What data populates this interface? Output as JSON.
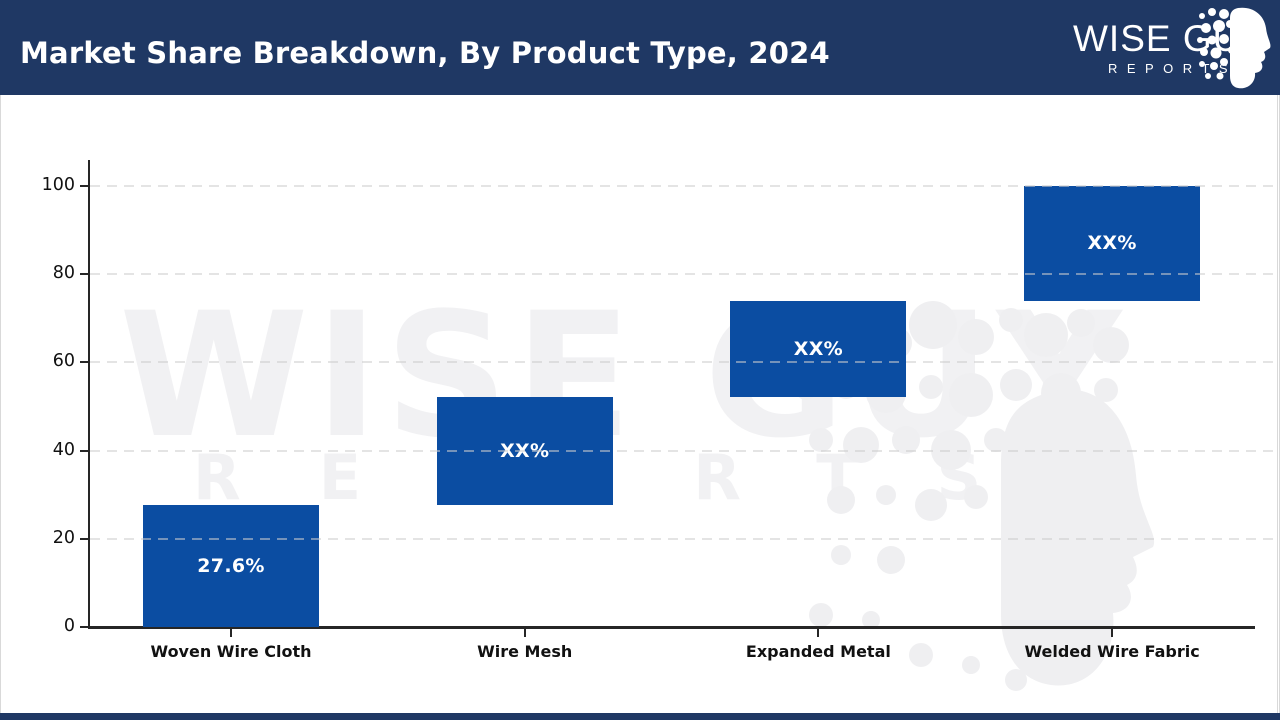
{
  "header": {
    "title": "Market Share Breakdown, By Product Type, 2024",
    "logo": {
      "line1": "WISE GUY",
      "line2": "REPORTS"
    }
  },
  "watermark": {
    "line1": "WISE GUY",
    "line2": "REPORTS"
  },
  "colors": {
    "header_bg": "#1F3864",
    "footer_bg": "#1F3864",
    "bar": "#0B4DA2",
    "grid": "#D9D9D9",
    "axis": "#262626",
    "bar_label": "#FFFFFF",
    "watermark": "#F1F1F3"
  },
  "chart_data": {
    "type": "bar",
    "subtype": "waterfall-floating-segments",
    "title": "Market Share Breakdown, By Product Type, 2024",
    "categories": [
      "Woven Wire Cloth",
      "Wire Mesh",
      "Expanded Metal",
      "Welded Wire Fabric"
    ],
    "segments": [
      {
        "category": "Woven Wire Cloth",
        "start": 0,
        "end": 27.6,
        "label": "27.6%"
      },
      {
        "category": "Wire Mesh",
        "start": 27.6,
        "end": 52.1,
        "label": "XX%"
      },
      {
        "category": "Expanded Metal",
        "start": 52.1,
        "end": 74.0,
        "label": "XX%"
      },
      {
        "category": "Welded Wire Fabric",
        "start": 74.0,
        "end": 100.0,
        "label": "XX%"
      }
    ],
    "xlabel": "",
    "ylabel": "",
    "ylim": [
      0,
      100
    ],
    "yticks": [
      0,
      20,
      40,
      60,
      80,
      100
    ],
    "grid": "horizontal-dashed",
    "legend": "none"
  }
}
